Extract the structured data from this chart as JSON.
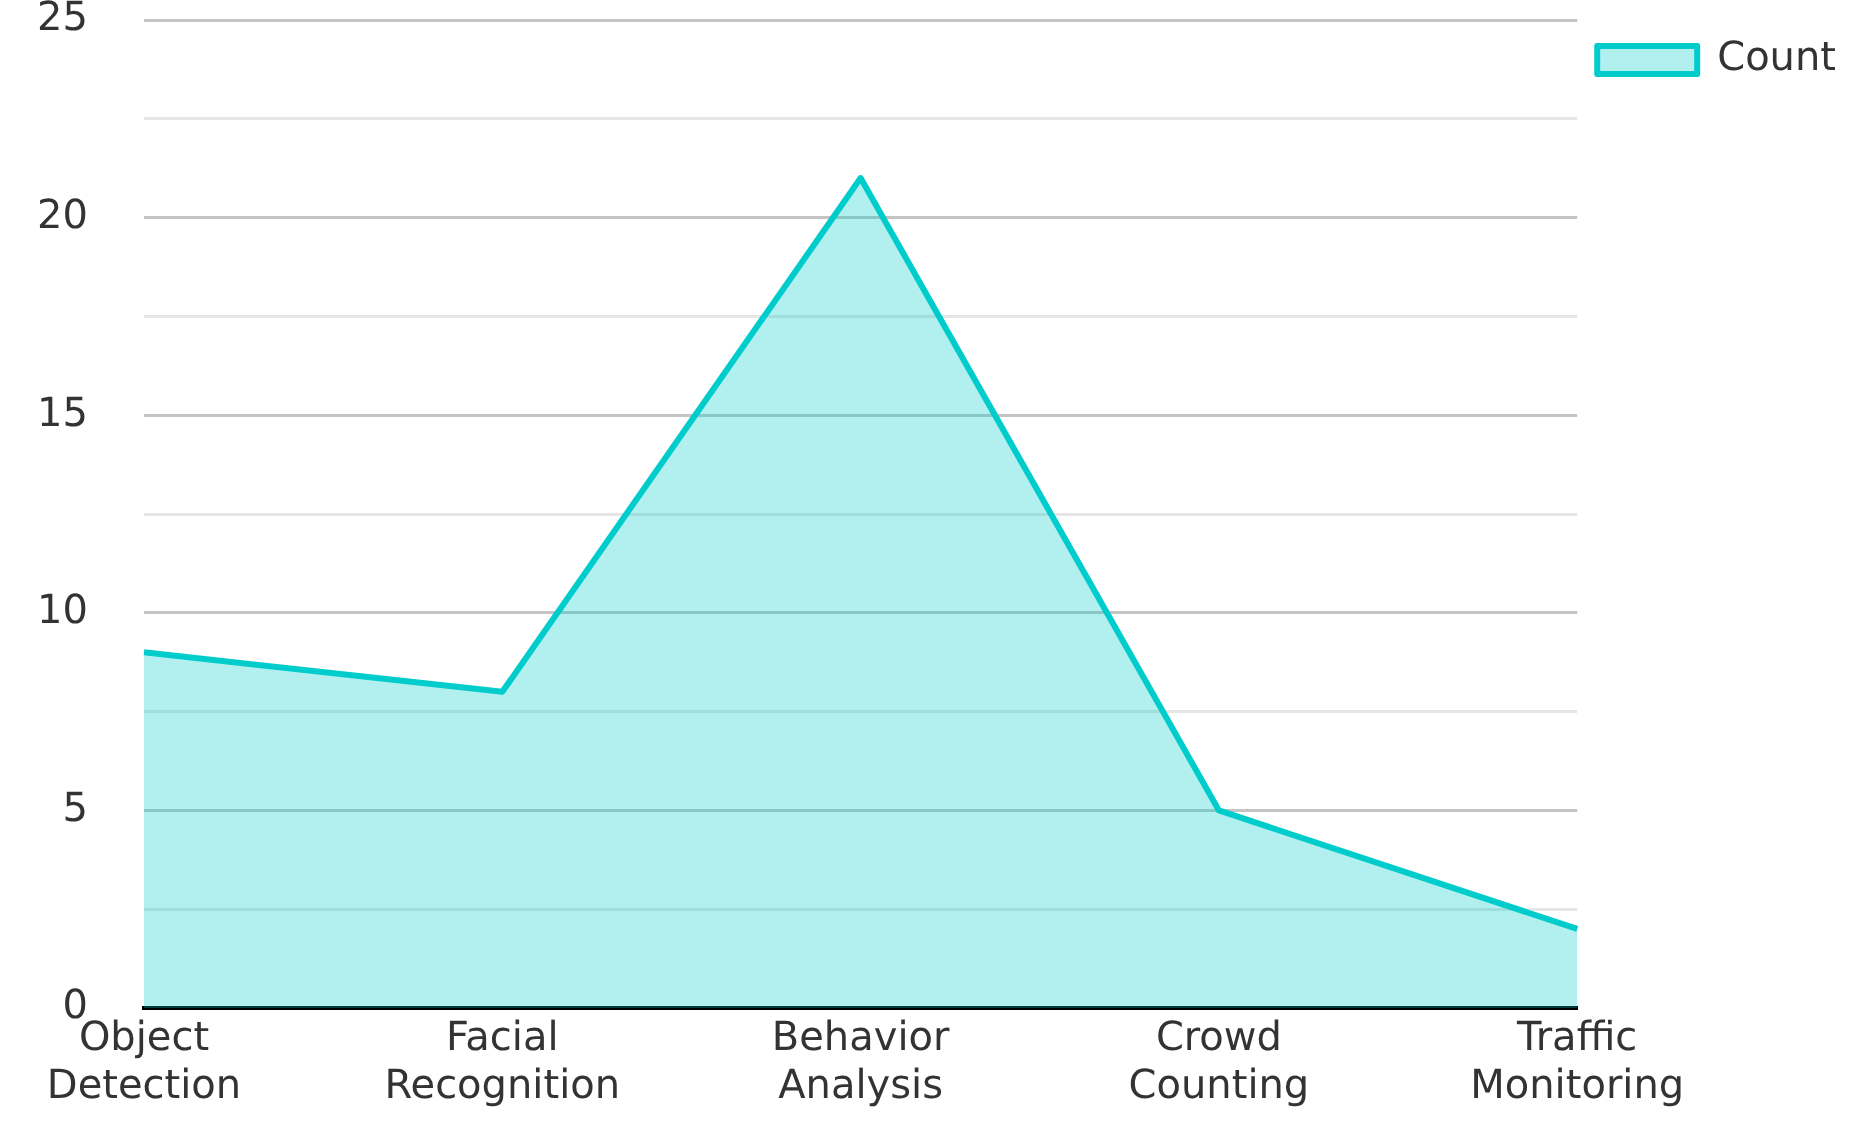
{
  "chart_data": {
    "type": "area",
    "categories": [
      "Object Detection",
      "Facial Recognition",
      "Behavior Analysis",
      "Crowd Counting",
      "Traffic Monitoring"
    ],
    "series": [
      {
        "name": "Count",
        "color": "#00cccc",
        "values": [
          9,
          8,
          21,
          5,
          2
        ]
      }
    ],
    "ylim": [
      0,
      25
    ],
    "yticks": [
      0,
      {
        "value": 2.5,
        "label": null
      },
      5,
      {
        "value": 7.5,
        "label": null
      },
      10,
      {
        "value": 12.5,
        "label": null
      },
      15,
      {
        "value": 17.5,
        "label": null
      },
      20,
      {
        "value": 22.5,
        "label": null
      },
      25
    ],
    "grid": "y",
    "legend": "top right"
  }
}
